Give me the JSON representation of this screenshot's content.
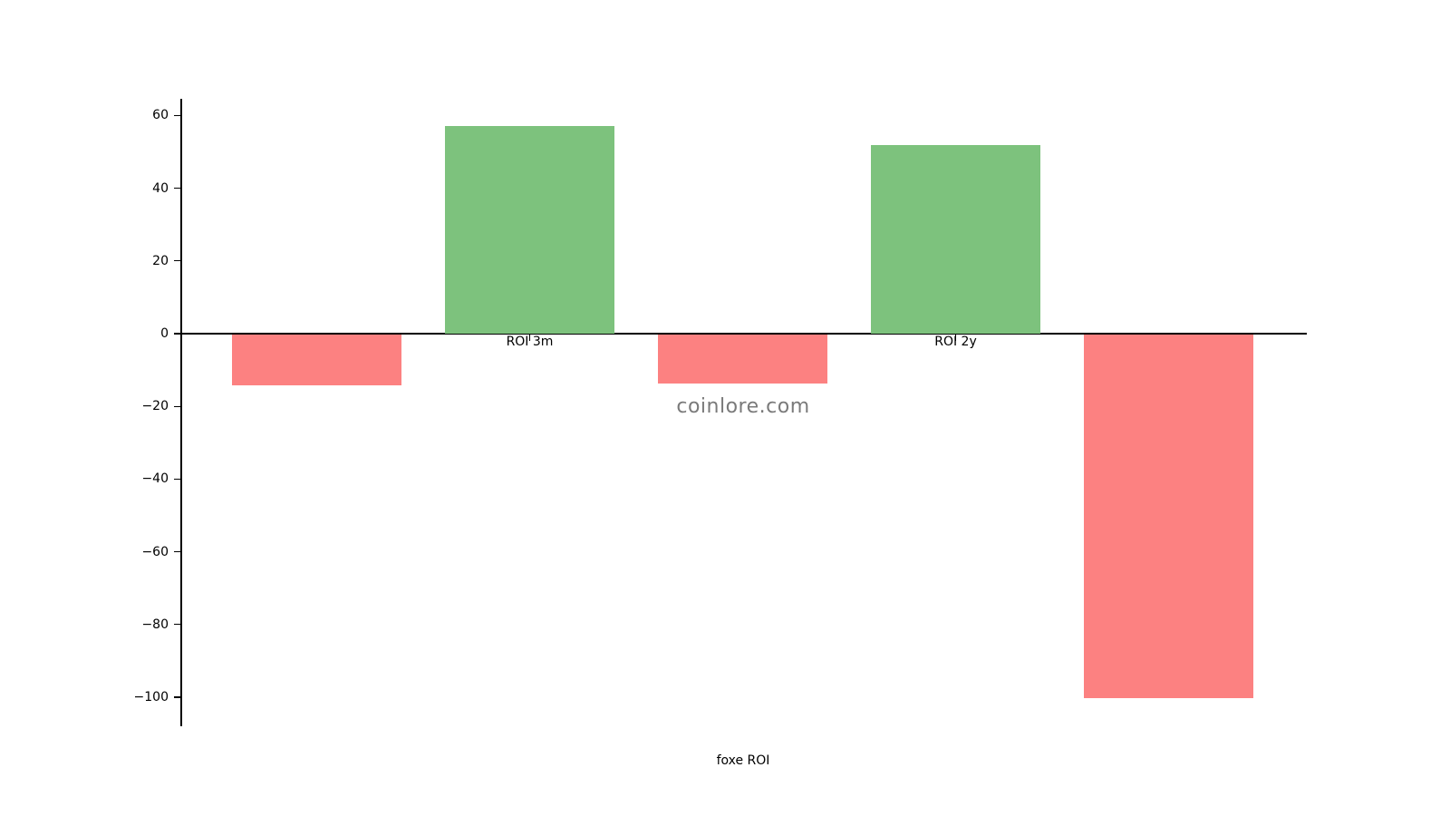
{
  "page": {
    "background": "#ffffff"
  },
  "chart_data": {
    "type": "bar",
    "title": "",
    "xlabel": "foxe ROI",
    "ylabel": "",
    "categories": [
      "",
      "ROI 3m",
      "",
      "ROI 2y",
      ""
    ],
    "values": [
      -14,
      57.2,
      -13.6,
      51.8,
      -100
    ],
    "ylim": [
      -108,
      65
    ],
    "yticks": [
      60,
      40,
      20,
      0,
      -20,
      -40,
      -60,
      -80,
      -100
    ],
    "ytick_labels": [
      "60",
      "40",
      "20",
      "0",
      "−20",
      "−40",
      "−60",
      "−80",
      "−100"
    ],
    "grid": false,
    "legend": "none",
    "watermark": "coinlore.com"
  },
  "colors": {
    "positive": "#7dc27d",
    "negative": "#fc8181",
    "axis": "#000000",
    "tick_text": "#000000",
    "watermark_text": "#7a7a7a"
  }
}
